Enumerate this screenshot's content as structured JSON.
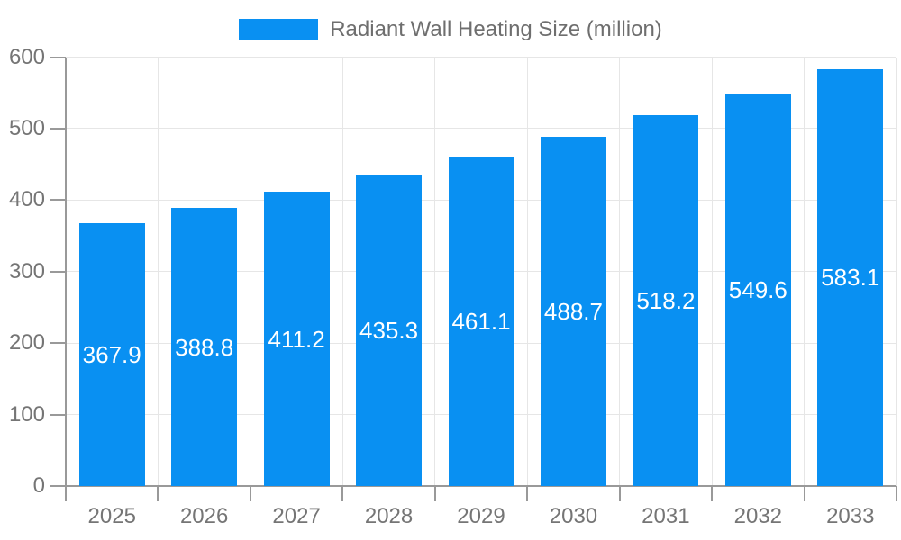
{
  "legend": {
    "label": "Radiant Wall Heating Size (million)"
  },
  "chart_data": {
    "type": "bar",
    "title": "Radiant Wall Heating Size (million)",
    "categories": [
      "2025",
      "2026",
      "2027",
      "2028",
      "2029",
      "2030",
      "2031",
      "2032",
      "2033"
    ],
    "values": [
      367.9,
      388.8,
      411.2,
      435.3,
      461.1,
      488.7,
      518.2,
      549.6,
      583.1
    ],
    "value_labels": [
      "367.9",
      "388.8",
      "411.2",
      "435.3",
      "461.1",
      "488.7",
      "518.2",
      "549.6",
      "583.1"
    ],
    "xlabel": "",
    "ylabel": "",
    "ylim": [
      0,
      600
    ],
    "ytick_interval": 100,
    "ytick_labels": [
      "0",
      "100",
      "200",
      "300",
      "400",
      "500",
      "600"
    ],
    "grid": "both",
    "legend_position": "top-center",
    "value_label_position": "inside-center"
  },
  "colors": {
    "bar": "#0990F2",
    "value_label": "#FFFFFF",
    "axis_text": "#757575",
    "legend_text": "#6E6E6E",
    "grid_line": "#E6E6E6",
    "axis_line": "#999999",
    "background": "#FFFFFF"
  }
}
